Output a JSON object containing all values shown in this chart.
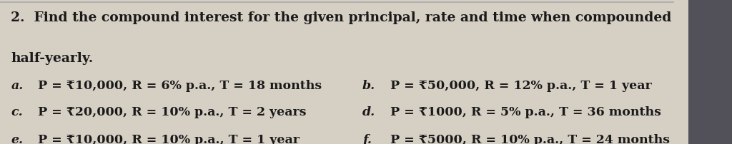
{
  "bg_color": "#d6cfc4",
  "text_color": "#1a1a1a",
  "title_line1": "2.  Find the compound interest for the given principal, rate and time when compounded",
  "title_line2": "half-yearly.",
  "items": [
    {
      "label": "a.",
      "text": "P = ₹10,000, R = 6% p.a., T = 18 months"
    },
    {
      "label": "b.",
      "text": "P = ₹50,000, R = 12% p.a., T = 1 year"
    },
    {
      "label": "c.",
      "text": "P = ₹20,000, R = 10% p.a., T = 2 years"
    },
    {
      "label": "d.",
      "text": "P = ₹1000, R = 5% p.a., T = 36 months"
    },
    {
      "label": "e.",
      "text": "P = ₹10,000, R = 10% p.a., T = 1 year"
    },
    {
      "label": "f.",
      "text": "P = ₹5000, R = 10% p.a., T = 24 months"
    }
  ],
  "title_fontsize": 13.5,
  "item_fontsize": 12.5,
  "figsize": [
    10.24,
    2.02
  ],
  "dpi": 100,
  "top_border_color": "#aaaaaa",
  "right_shadow_color": "#2a2a3a"
}
